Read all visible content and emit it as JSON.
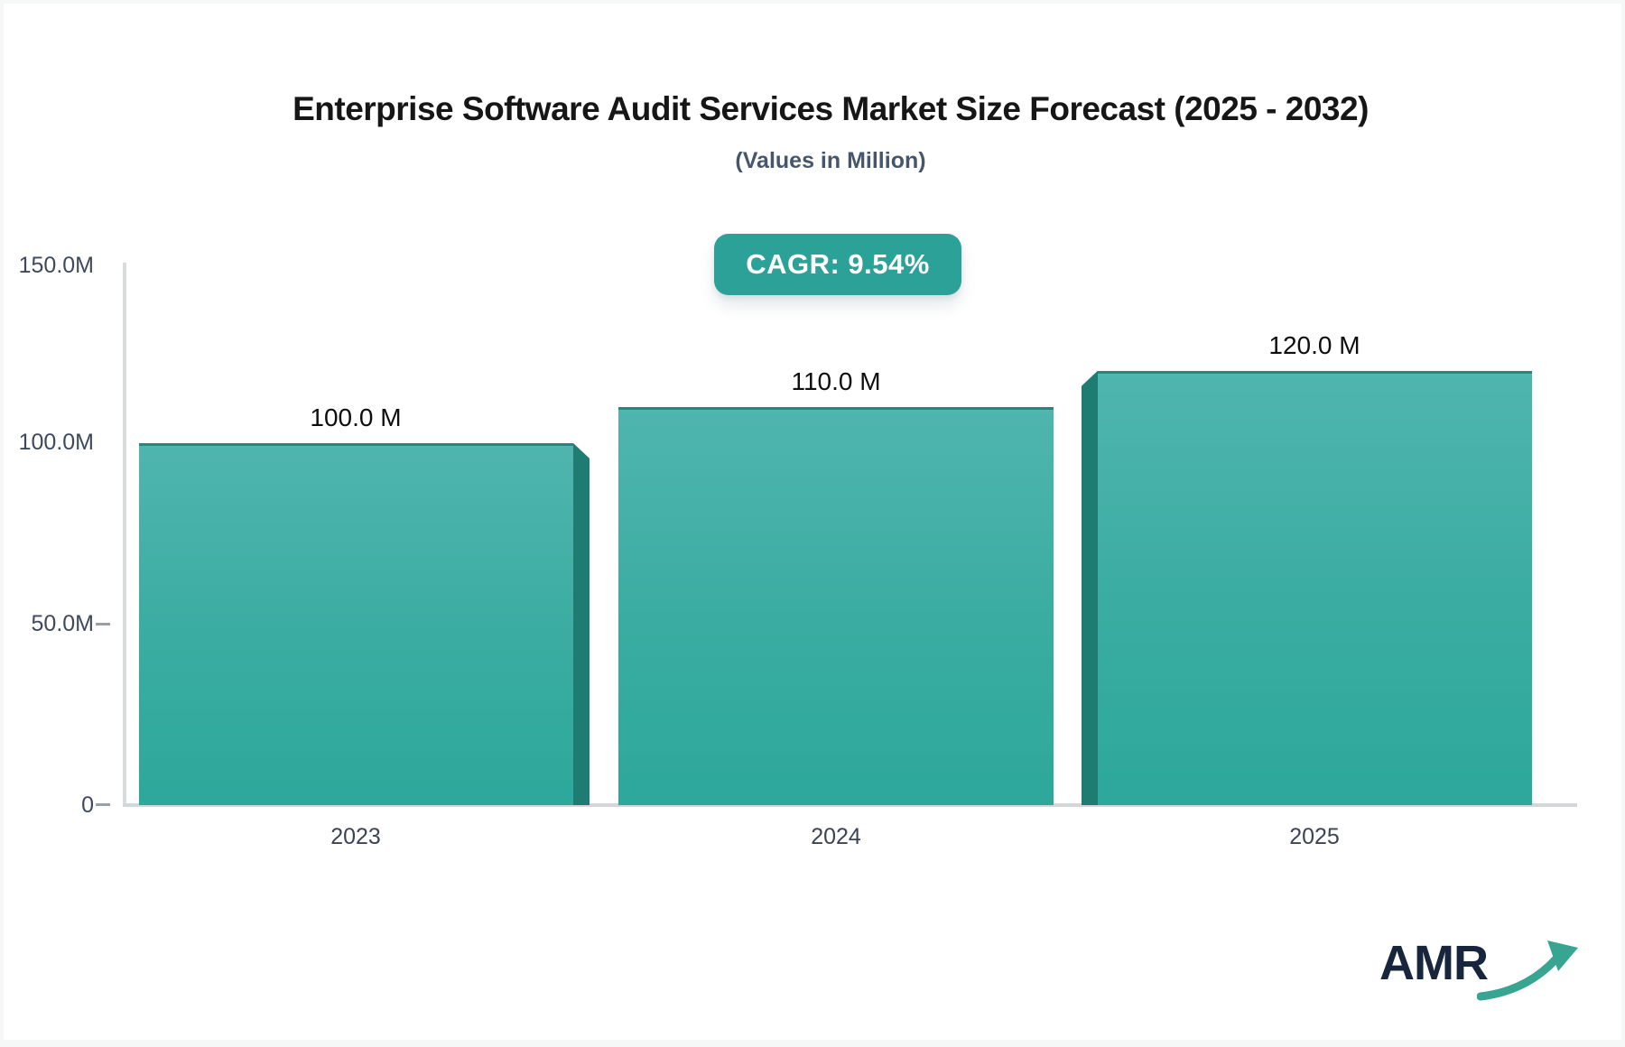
{
  "header": {
    "title": "Enterprise Software Audit Services Market Size Forecast (2025 - 2032)",
    "subtitle": "(Values in Million)"
  },
  "badge": {
    "label": "CAGR: 9.54%",
    "color": "#2ba197"
  },
  "chart_data": {
    "type": "bar",
    "title": "Enterprise Software Audit Services Market Size Forecast (2025 - 2032)",
    "subtitle": "(Values in Million)",
    "unit": "Million",
    "categories": [
      "2023",
      "2024",
      "2025"
    ],
    "values": [
      100,
      110,
      120
    ],
    "value_labels": [
      "100.0 M",
      "110.0 M",
      "120.0 M"
    ],
    "ylim": [
      0,
      150
    ],
    "ytick_labels": [
      "150.0M",
      "100.0M",
      "50.0M",
      "0"
    ],
    "ytick_values": [
      150,
      100,
      50,
      0
    ],
    "grid": false,
    "legend": false,
    "annotations": [
      "CAGR: 9.54%"
    ],
    "bar_color_top": "#4fb5ae",
    "bar_color_bottom": "#2da89b",
    "bar_side_color": "#1f7c73",
    "accent_color": "#2ba197"
  },
  "logo": {
    "text": "AMR",
    "color": "#17263d",
    "arrow_color": "#38a492"
  }
}
